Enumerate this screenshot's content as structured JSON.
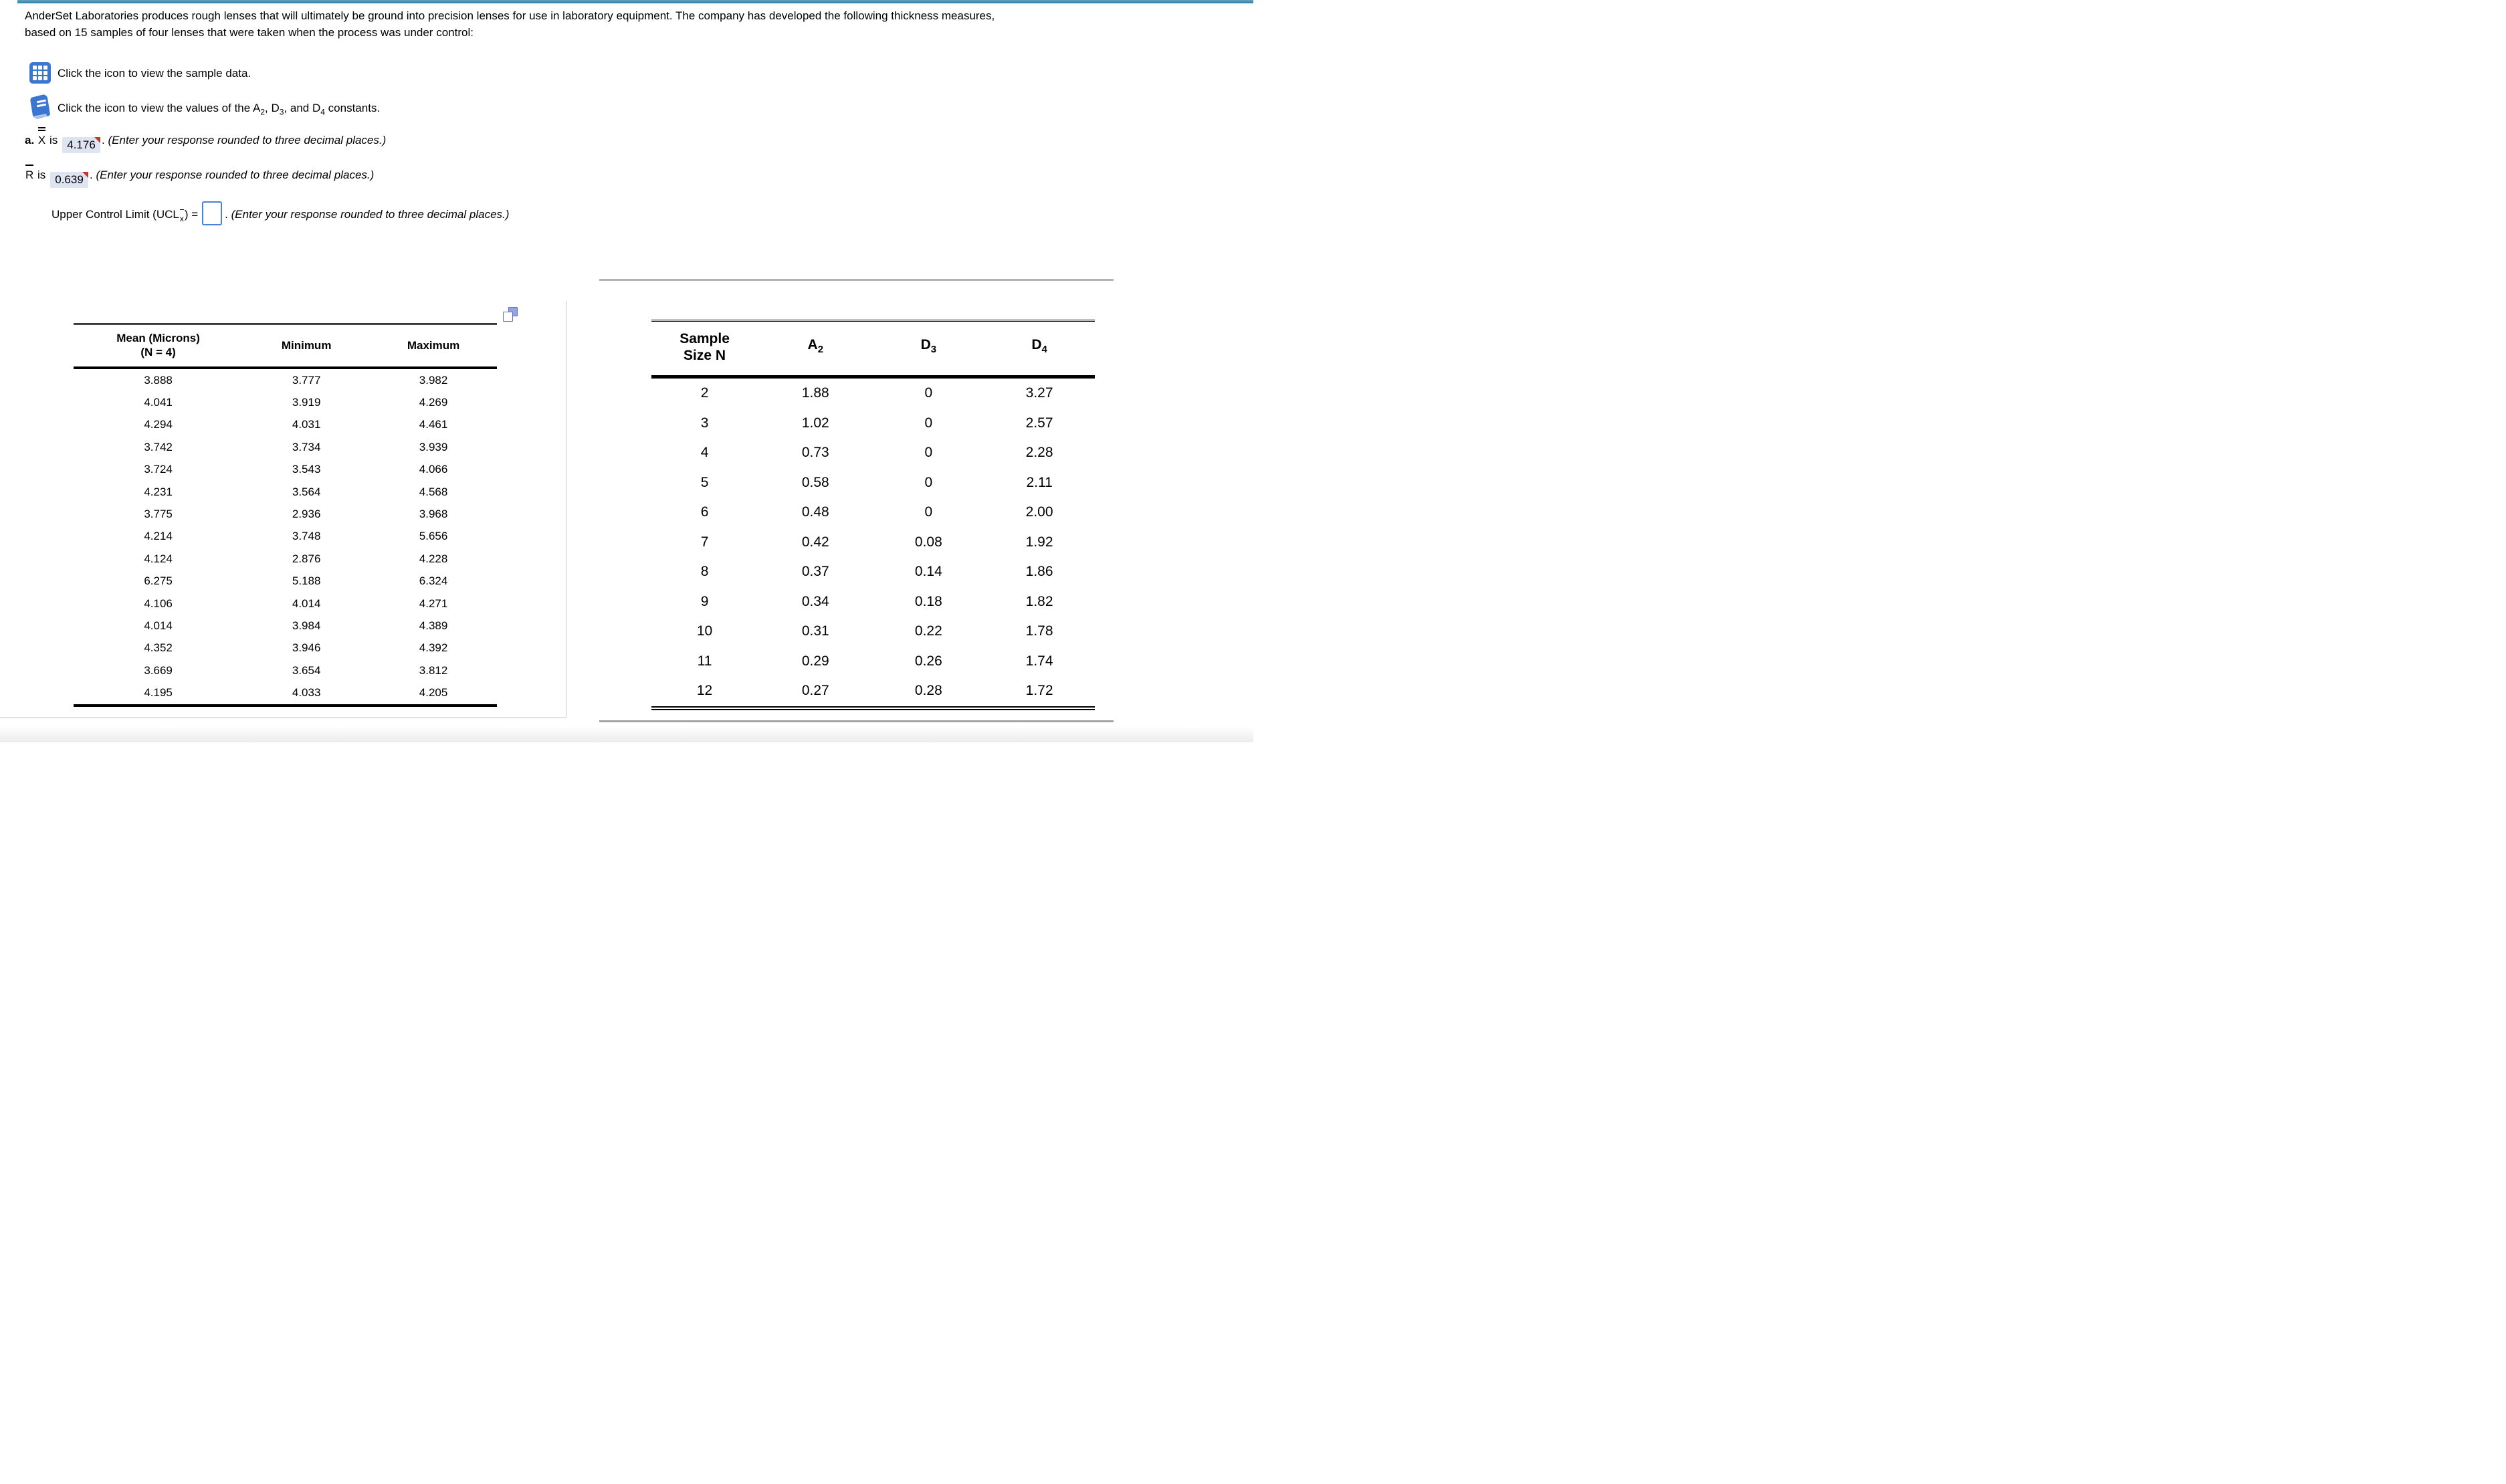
{
  "intro": {
    "line1": "AnderSet Laboratories produces rough lenses that will ultimately be ground into precision lenses for use in laboratory equipment. The company has developed the following thickness measures,",
    "line2": "based on 15 samples of four lenses that were taken when the process was under control:"
  },
  "links": {
    "sample_data": "Click the icon to view the sample data.",
    "constants": {
      "p1": "Click the icon to view the values of the A",
      "s1": "2",
      "p2": ", D",
      "s2": "3",
      "p3": ", and D",
      "s3": "4",
      "p4": " constants."
    }
  },
  "answers": {
    "a_label": "a.",
    "xdoublebar_letter": "X",
    "is_word": "is",
    "xdoublebar_value": "4.176",
    "rbar_letter": "R",
    "rbar_value": "0.639",
    "ucl_prefix": "Upper Control Limit (UCL",
    "ucl_sub": "x",
    "ucl_close": ") =",
    "ucl_value": "",
    "period": ".",
    "round_note": "(Enter your response rounded to three decimal places.)"
  },
  "sample_table": {
    "header": {
      "col1_line1": "Mean (Microns)",
      "col1_line2": "(N = 4)",
      "col2": "Minimum",
      "col3": "Maximum"
    },
    "rows": [
      [
        "3.888",
        "3.777",
        "3.982"
      ],
      [
        "4.041",
        "3.919",
        "4.269"
      ],
      [
        "4.294",
        "4.031",
        "4.461"
      ],
      [
        "3.742",
        "3.734",
        "3.939"
      ],
      [
        "3.724",
        "3.543",
        "4.066"
      ],
      [
        "4.231",
        "3.564",
        "4.568"
      ],
      [
        "3.775",
        "2.936",
        "3.968"
      ],
      [
        "4.214",
        "3.748",
        "5.656"
      ],
      [
        "4.124",
        "2.876",
        "4.228"
      ],
      [
        "6.275",
        "5.188",
        "6.324"
      ],
      [
        "4.106",
        "4.014",
        "4.271"
      ],
      [
        "4.014",
        "3.984",
        "4.389"
      ],
      [
        "4.352",
        "3.946",
        "4.392"
      ],
      [
        "3.669",
        "3.654",
        "3.812"
      ],
      [
        "4.195",
        "4.033",
        "4.205"
      ]
    ]
  },
  "constants_table": {
    "header": {
      "col1_line1": "Sample",
      "col1_line2": "Size N",
      "col2_base": "A",
      "col2_sub": "2",
      "col3_base": "D",
      "col3_sub": "3",
      "col4_base": "D",
      "col4_sub": "4"
    },
    "rows": [
      [
        "2",
        "1.88",
        "0",
        "3.27"
      ],
      [
        "3",
        "1.02",
        "0",
        "2.57"
      ],
      [
        "4",
        "0.73",
        "0",
        "2.28"
      ],
      [
        "5",
        "0.58",
        "0",
        "2.11"
      ],
      [
        "6",
        "0.48",
        "0",
        "2.00"
      ],
      [
        "7",
        "0.42",
        "0.08",
        "1.92"
      ],
      [
        "8",
        "0.37",
        "0.14",
        "1.86"
      ],
      [
        "9",
        "0.34",
        "0.18",
        "1.82"
      ],
      [
        "10",
        "0.31",
        "0.22",
        "1.78"
      ],
      [
        "11",
        "0.29",
        "0.26",
        "1.74"
      ],
      [
        "12",
        "0.27",
        "0.28",
        "1.72"
      ]
    ]
  },
  "colors": {
    "top_bar_teal": "#2e7fa3",
    "icon_blue": "#3b76d1",
    "answer_highlight": "#dfe4f3",
    "flag_red": "#c6352c",
    "input_border_blue": "#4b7fd8",
    "popout_blue": "#5d72c4"
  }
}
